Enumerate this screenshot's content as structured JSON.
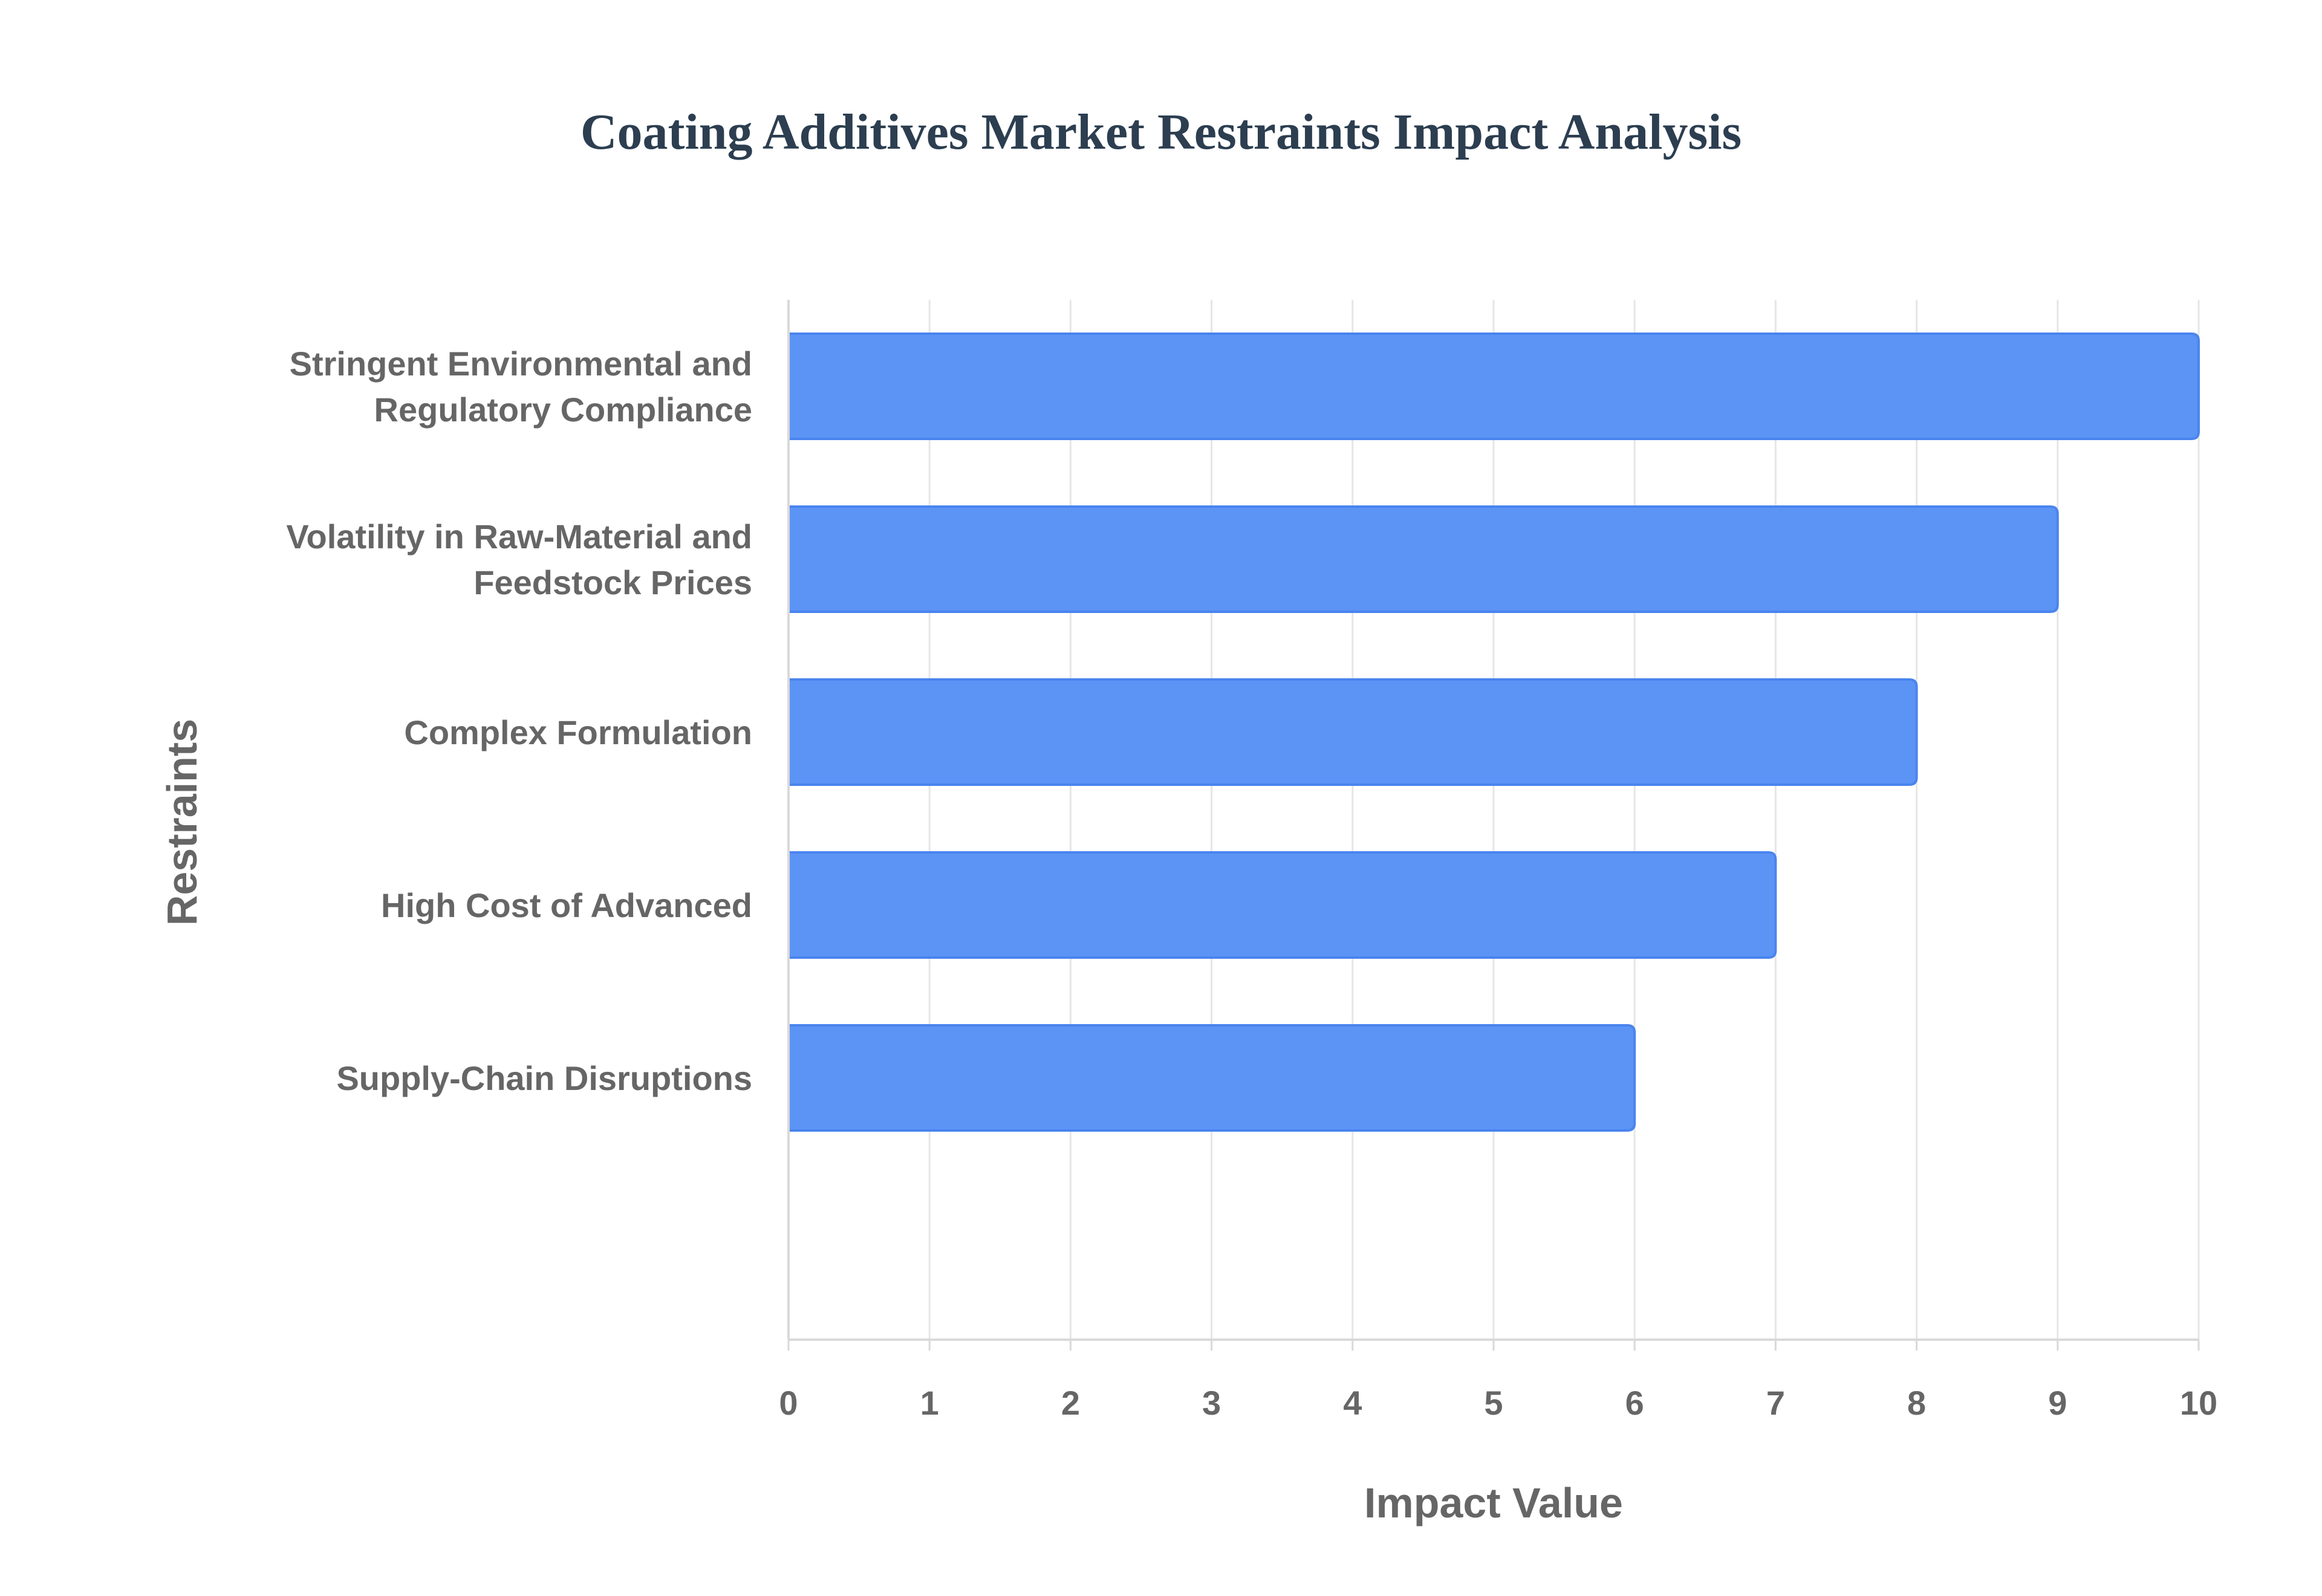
{
  "chart_data": {
    "type": "bar",
    "orientation": "horizontal",
    "title": "Coating Additives Market Restraints Impact Analysis",
    "xlabel": "Impact Value",
    "ylabel": "Restraints",
    "categories": [
      [
        "Stringent Environmental and",
        "Regulatory Compliance"
      ],
      [
        "Volatility in Raw-Material and",
        "Feedstock Prices"
      ],
      [
        "Complex Formulation"
      ],
      [
        "High Cost of Advanced"
      ],
      [
        "Supply-Chain Disruptions"
      ]
    ],
    "values": [
      10,
      9,
      8,
      7,
      6
    ],
    "xlim": [
      0,
      10
    ],
    "xticks": [
      "0",
      "1",
      "2",
      "3",
      "4",
      "5",
      "6",
      "7",
      "8",
      "9",
      "10"
    ],
    "grid": true,
    "legend": "none",
    "colors": {
      "bar_fill": "#5b94f5",
      "bar_stroke": "#4a84ee",
      "grid": "#e6e6e6",
      "axis": "#d9d9d9",
      "title": "#2c3e50",
      "label": "#666666"
    }
  }
}
